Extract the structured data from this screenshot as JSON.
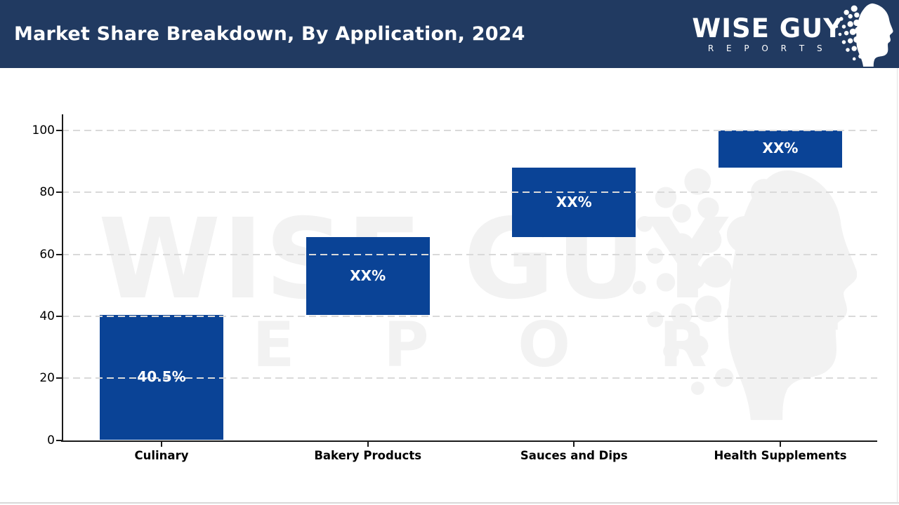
{
  "header": {
    "title": "Market Share Breakdown, By Application, 2024",
    "logo": {
      "wordmark": "WISE GUY",
      "subtext": "R E P O R T S"
    }
  },
  "watermark": {
    "line1": "WISE GUY",
    "line2": "R E P O R T S"
  },
  "chart_data": {
    "type": "bar",
    "variant": "waterfall-floating-segments",
    "title": "Market Share Breakdown, By Application, 2024",
    "categories": [
      "Culinary",
      "Bakery Products",
      "Sauces and Dips",
      "Health Supplements"
    ],
    "bars": [
      {
        "category": "Culinary",
        "start": 0,
        "end": 40.5,
        "label": "40.5%"
      },
      {
        "category": "Bakery Products",
        "start": 40.5,
        "end": 65.5,
        "label": "XX%"
      },
      {
        "category": "Sauces and Dips",
        "start": 65.5,
        "end": 88,
        "label": "XX%"
      },
      {
        "category": "Health Supplements",
        "start": 88,
        "end": 100,
        "label": "XX%"
      }
    ],
    "xlabel": "",
    "ylabel": "",
    "ylim": [
      0,
      100
    ],
    "yticks": [
      0,
      20,
      40,
      60,
      80,
      100
    ],
    "grid": "horizontal dashed lines drawn over bars",
    "legend": "none",
    "bar_color": "#0a4396",
    "bar_label_color": "#ffffff"
  },
  "colors": {
    "header_bg": "#213a61",
    "title_text": "#ffffff",
    "bar": "#0a4396",
    "grid": "#d9d9d9",
    "axis": "#1a1a1a",
    "watermark": "#f2f2f2"
  }
}
